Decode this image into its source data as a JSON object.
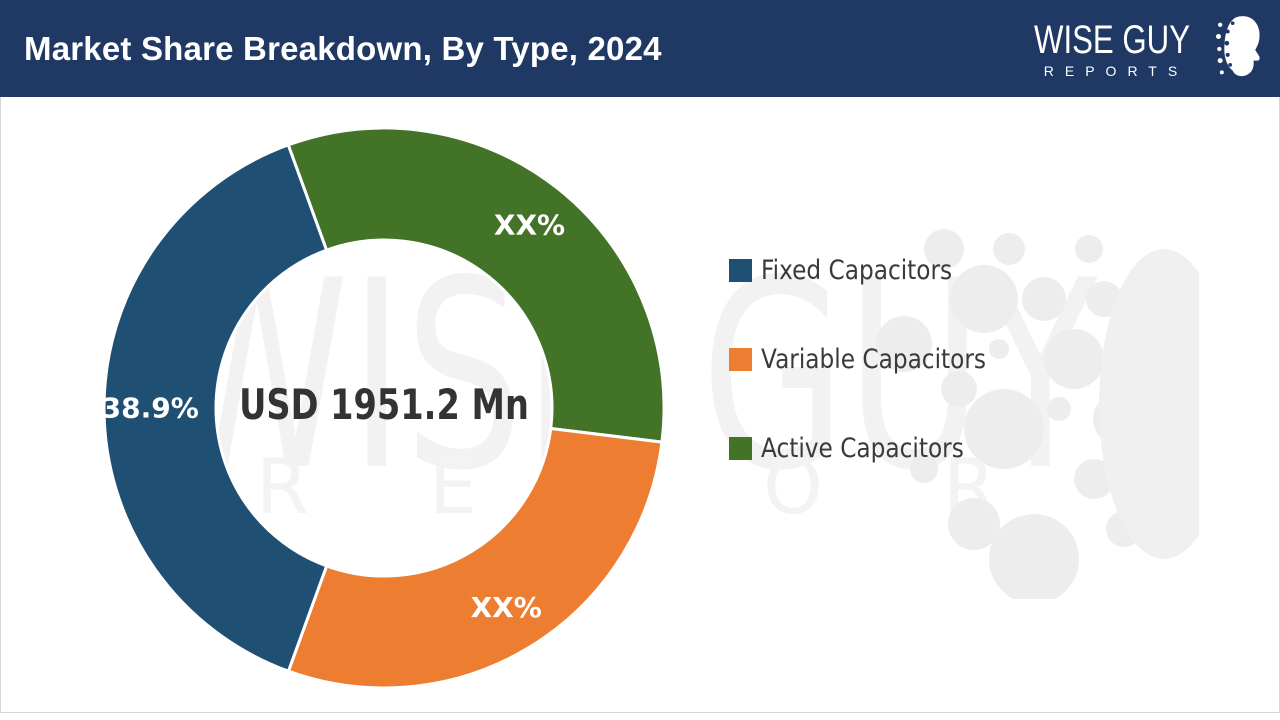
{
  "header": {
    "title": "Market Share Breakdown, By Type, 2024",
    "logo": {
      "line1": "WISE GUY",
      "line2": "REPORTS"
    }
  },
  "watermark": {
    "line1": "WISE GUY",
    "line2": "R E P O R T S"
  },
  "chart_data": {
    "type": "donut",
    "title": "Market Share Breakdown, By Type, 2024",
    "center_label": "USD 1951.2 Mn",
    "start_angle_deg": -20,
    "inner_radius_ratio": 0.6,
    "label_radius_ratio": 0.835,
    "legend_position": "right",
    "segments": [
      {
        "name": "Active Capacitors",
        "pct": 32.5,
        "label": "XX%",
        "color": "#427326"
      },
      {
        "name": "Variable Capacitors",
        "pct": 28.6,
        "label": "XX%",
        "color": "#ED7D31"
      },
      {
        "name": "Fixed Capacitors",
        "pct": 38.9,
        "label": "38.9%",
        "color": "#1F5074"
      }
    ],
    "legend": [
      {
        "label": "Fixed Capacitors",
        "color": "#1F5074"
      },
      {
        "label": "Variable Capacitors",
        "color": "#ED7D31"
      },
      {
        "label": "Active Capacitors",
        "color": "#427326"
      }
    ]
  },
  "colors": {
    "header_bg": "#1F3864",
    "text_dark": "#3A3A3A",
    "hairline": "#D6D6D6"
  }
}
